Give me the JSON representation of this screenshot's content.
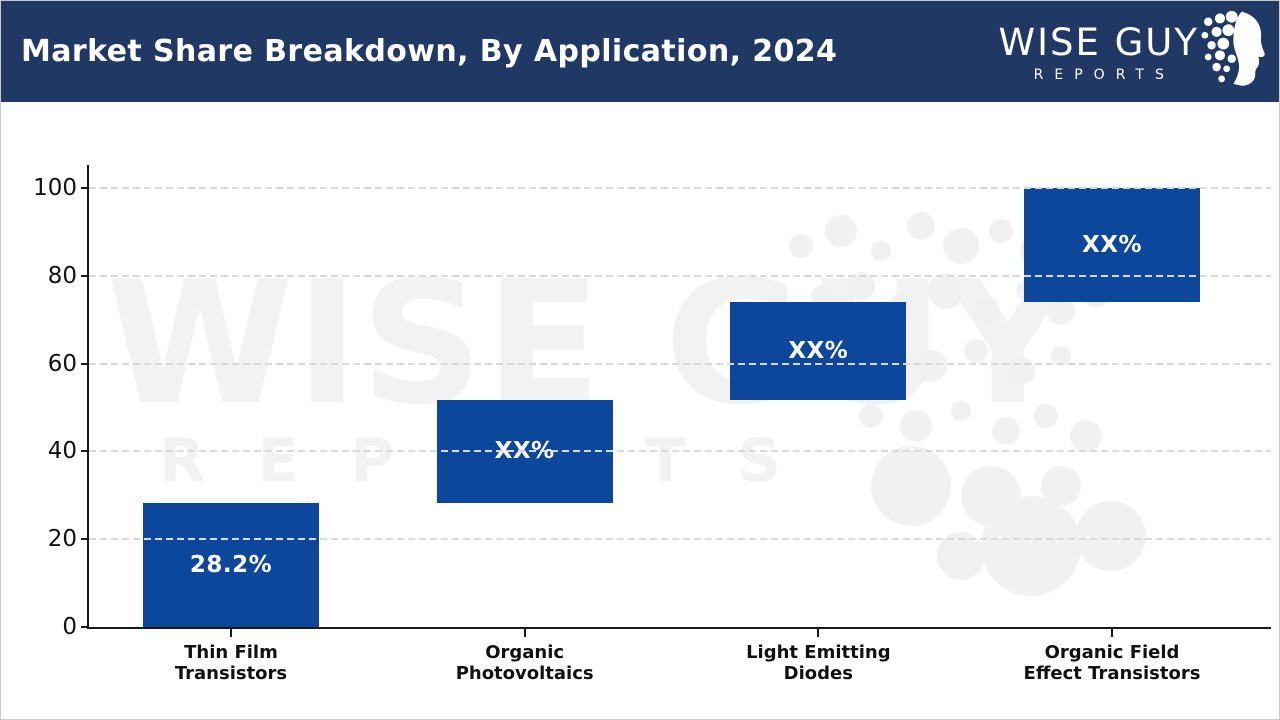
{
  "header": {
    "title": "Market Share Breakdown, By Application, 2024",
    "logo": {
      "line1": "WISE GUY",
      "line2": "REPORTS"
    }
  },
  "watermark": {
    "line1": "WISE GUY",
    "line2": "REPORTS"
  },
  "colors": {
    "header_bg": "#1f3864",
    "bar": "#0c479c",
    "grid": "#d9d9d9",
    "axis": "#1a1a1a",
    "bar_label": "#ffffff",
    "watermark": "#f2f2f2"
  },
  "chart_data": {
    "type": "bar",
    "subtype": "waterfall-breakdown",
    "title": "Market Share Breakdown, By Application, 2024",
    "xlabel": "",
    "ylabel": "",
    "ylim": [
      0,
      105
    ],
    "yticks": [
      0,
      20,
      40,
      60,
      80,
      100
    ],
    "grid": "horizontal-dashed-over-bars",
    "legend": "none",
    "bar_color": "#0c479c",
    "segments": [
      {
        "category": "Thin Film Transistors",
        "category_lines": [
          "Thin Film",
          "Transistors"
        ],
        "start": 0,
        "end": 28.2,
        "label": "28.2%"
      },
      {
        "category": "Organic Photovoltaics",
        "category_lines": [
          "Organic",
          "Photovoltaics"
        ],
        "start": 28.2,
        "end": 51.8,
        "label": "XX%"
      },
      {
        "category": "Light Emitting Diodes",
        "category_lines": [
          "Light Emitting",
          "Diodes"
        ],
        "start": 51.8,
        "end": 74.1,
        "label": "XX%"
      },
      {
        "category": "Organic Field Effect Transistors",
        "category_lines": [
          "Organic Field",
          "Effect Transistors"
        ],
        "start": 74.1,
        "end": 100,
        "label": "XX%"
      }
    ]
  }
}
